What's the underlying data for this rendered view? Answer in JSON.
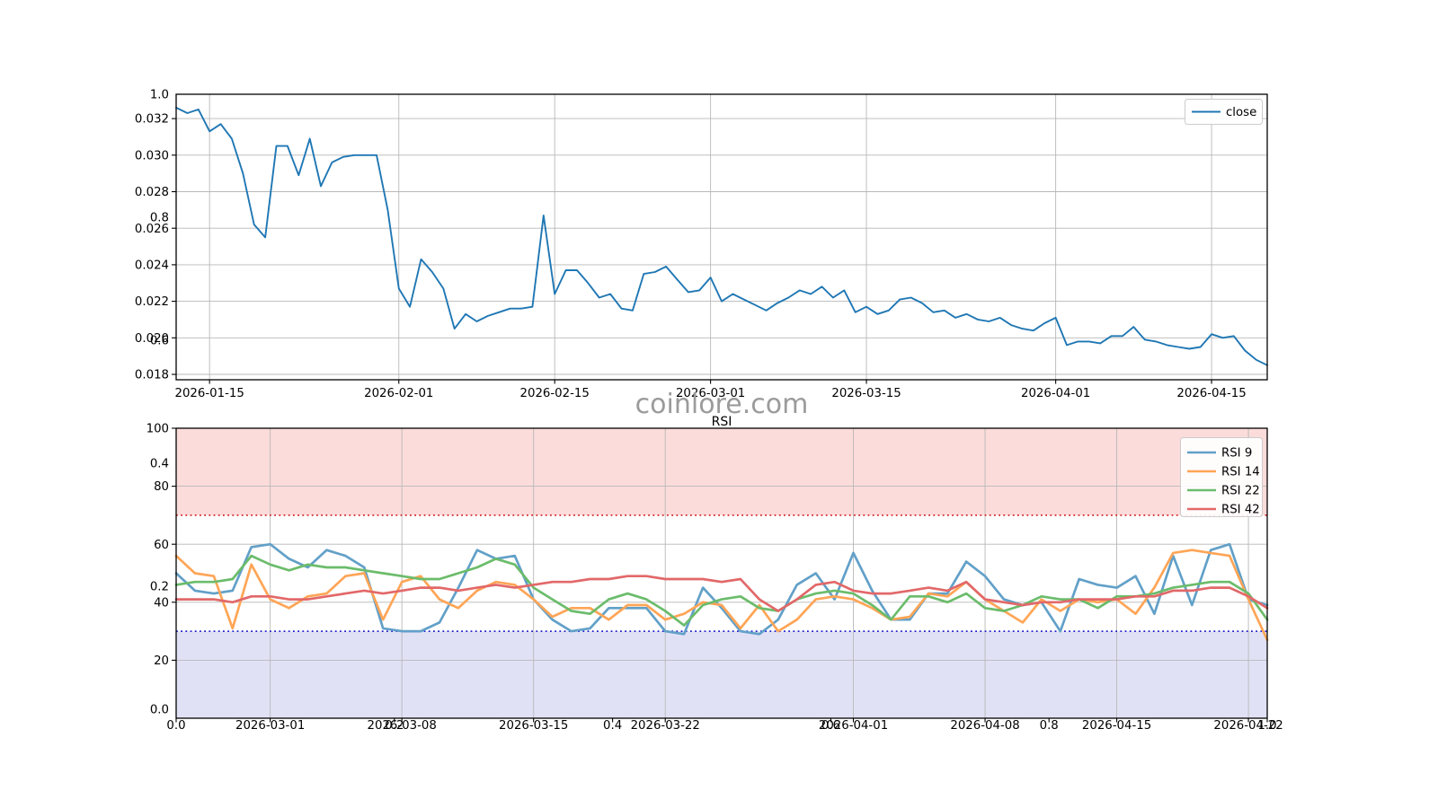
{
  "watermark": "coinlore.com",
  "price_chart": {
    "legend_label": "close",
    "x_tick_labels": [
      "2026-01-15",
      "2026-02-01",
      "2026-02-15",
      "2026-03-01",
      "2026-03-15",
      "2026-04-01",
      "2026-04-15"
    ],
    "y_tick_labels": [
      "0.032",
      "0.030",
      "0.028",
      "0.026",
      "0.024",
      "0.022",
      "0.020",
      "0.018"
    ]
  },
  "rsi_chart": {
    "title": "RSI",
    "x_tick_labels": [
      "2026-03-01",
      "2026-03-08",
      "2026-03-15",
      "2026-03-22",
      "2026-04-01",
      "2026-04-08",
      "2026-04-15",
      "2026-04-22"
    ],
    "y_tick_labels": [
      "100",
      "80",
      "60",
      "40",
      "20"
    ],
    "overbought_level": 70,
    "oversold_level": 30,
    "overbought_band_color": "#fbdcdb",
    "oversold_band_color": "#e1e1f6",
    "overbought_line_color": "#d62728",
    "oversold_line_color": "#2222cc"
  },
  "overlay_axis": {
    "y_labels": [
      "1.0",
      "0.8",
      "0.6",
      "0.4",
      "0.2",
      "0.0"
    ],
    "x_labels": [
      "0.0",
      "0.2",
      "0.4",
      "0.6",
      "0.8",
      "1.0"
    ]
  },
  "chart_data": [
    {
      "type": "line",
      "id": "price",
      "title": "",
      "legend_position": "upper right",
      "grid": true,
      "ylim": [
        0.0177,
        0.0334
      ],
      "x_ticks": [
        "2026-01-15",
        "2026-02-01",
        "2026-02-15",
        "2026-03-01",
        "2026-03-15",
        "2026-04-01",
        "2026-04-15"
      ],
      "y_ticks": [
        0.032,
        0.03,
        0.028,
        0.026,
        0.024,
        0.022,
        0.02,
        0.018
      ],
      "start_date": "2026-01-12",
      "series": [
        {
          "name": "close",
          "color": "#1f77b4",
          "values": [
            0.0326,
            0.0323,
            0.0325,
            0.0313,
            0.0317,
            0.0309,
            0.029,
            0.0262,
            0.0255,
            0.0305,
            0.0305,
            0.0289,
            0.0309,
            0.0283,
            0.0296,
            0.0299,
            0.03,
            0.03,
            0.03,
            0.027,
            0.0227,
            0.0217,
            0.0243,
            0.0236,
            0.0227,
            0.0205,
            0.0213,
            0.0209,
            0.0212,
            0.0214,
            0.0216,
            0.0216,
            0.0217,
            0.0267,
            0.0224,
            0.0237,
            0.0237,
            0.023,
            0.0222,
            0.0224,
            0.0216,
            0.0215,
            0.0235,
            0.0236,
            0.0239,
            0.0232,
            0.0225,
            0.0226,
            0.0233,
            0.022,
            0.0224,
            0.0221,
            0.0218,
            0.0215,
            0.0219,
            0.0222,
            0.0226,
            0.0224,
            0.0228,
            0.0222,
            0.0226,
            0.0214,
            0.0217,
            0.0213,
            0.0215,
            0.0221,
            0.0222,
            0.0219,
            0.0214,
            0.0215,
            0.0211,
            0.0213,
            0.021,
            0.0209,
            0.0211,
            0.0207,
            0.0205,
            0.0204,
            0.0208,
            0.0211,
            0.0196,
            0.0198,
            0.0198,
            0.0197,
            0.0201,
            0.0201,
            0.0206,
            0.0199,
            0.0198,
            0.0196,
            0.0195,
            0.0194,
            0.0195,
            0.0202,
            0.02,
            0.0201,
            0.0193,
            0.0188,
            0.0185
          ]
        }
      ]
    },
    {
      "type": "line",
      "id": "rsi",
      "title": "RSI",
      "legend_position": "upper right",
      "grid": true,
      "ylim": [
        0,
        100
      ],
      "x_ticks": [
        "2026-03-01",
        "2026-03-08",
        "2026-03-15",
        "2026-03-22",
        "2026-04-01",
        "2026-04-08",
        "2026-04-15",
        "2026-04-22"
      ],
      "y_ticks": [
        100,
        80,
        60,
        40,
        20
      ],
      "start_date": "2026-02-24",
      "series": [
        {
          "name": "RSI 9",
          "color": "#62a0c8",
          "values": [
            50,
            44,
            43,
            44,
            59,
            60,
            55,
            52,
            58,
            56,
            52,
            31,
            30,
            30,
            33,
            45,
            58,
            55,
            56,
            41,
            34,
            30,
            31,
            38,
            38,
            38,
            30,
            29,
            45,
            38,
            30,
            29,
            34,
            46,
            50,
            41,
            57,
            44,
            34,
            34,
            43,
            43,
            54,
            49,
            41,
            39,
            40,
            30,
            48,
            46,
            45,
            49,
            36,
            56,
            39,
            58,
            60,
            41,
            39
          ]
        },
        {
          "name": "RSI 14",
          "color": "#ffa556",
          "values": [
            56,
            50,
            49,
            31,
            53,
            41,
            38,
            42,
            43,
            49,
            50,
            34,
            47,
            49,
            41,
            38,
            44,
            47,
            46,
            41,
            35,
            38,
            38,
            34,
            39,
            39,
            34,
            36,
            40,
            39,
            31,
            39,
            30,
            34,
            41,
            42,
            41,
            38,
            34,
            35,
            43,
            42,
            47,
            41,
            37,
            33,
            41,
            37,
            41,
            40,
            41,
            36,
            45,
            57,
            58,
            57,
            56,
            41,
            27
          ]
        },
        {
          "name": "RSI 22",
          "color": "#6bbc6b",
          "values": [
            46,
            47,
            47,
            48,
            56,
            53,
            51,
            53,
            52,
            52,
            51,
            50,
            49,
            48,
            48,
            50,
            52,
            55,
            53,
            45,
            41,
            37,
            36,
            41,
            43,
            41,
            37,
            32,
            39,
            41,
            42,
            38,
            37,
            41,
            43,
            44,
            43,
            39,
            34,
            42,
            42,
            40,
            43,
            38,
            37,
            39,
            42,
            41,
            41,
            38,
            42,
            42,
            43,
            45,
            46,
            47,
            47,
            43,
            34
          ]
        },
        {
          "name": "RSI 42",
          "color": "#e26869",
          "values": [
            41,
            41,
            41,
            40,
            42,
            42,
            41,
            41,
            42,
            43,
            44,
            43,
            44,
            45,
            45,
            44,
            45,
            46,
            45,
            46,
            47,
            47,
            48,
            48,
            49,
            49,
            48,
            48,
            48,
            47,
            48,
            41,
            37,
            41,
            46,
            47,
            44,
            43,
            43,
            44,
            45,
            44,
            47,
            41,
            40,
            39,
            40,
            40,
            41,
            41,
            41,
            42,
            42,
            44,
            44,
            45,
            45,
            42,
            38
          ]
        }
      ]
    }
  ]
}
